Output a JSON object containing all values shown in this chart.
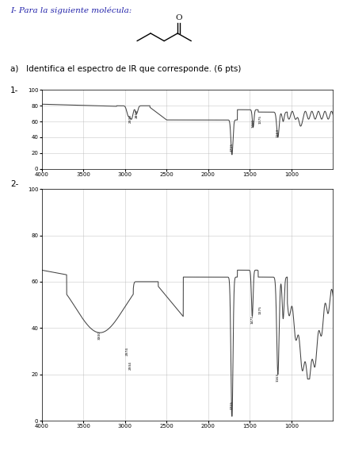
{
  "title_text": "I- Para la siguiente molécula:",
  "question_text": "a)   Identifica el espectro de IR que corresponde. (6 pts)",
  "label1": "1-",
  "label2": "2-",
  "spectrum1": {
    "yticks": [
      0,
      20,
      40,
      60,
      80,
      100
    ],
    "xticks": [
      4000,
      3500,
      3000,
      2500,
      2000,
      1500,
      1000
    ]
  },
  "spectrum2": {
    "yticks": [
      0,
      20,
      40,
      60,
      80,
      100
    ],
    "xticks": [
      4000,
      3500,
      3000,
      2500,
      2000,
      1500,
      1000
    ]
  },
  "line_color": "#444444",
  "grid_color": "#bbbbbb",
  "text_color": "#000000",
  "title_color": "#2222aa",
  "question_color": "#000000",
  "bg_color": "#ffffff"
}
